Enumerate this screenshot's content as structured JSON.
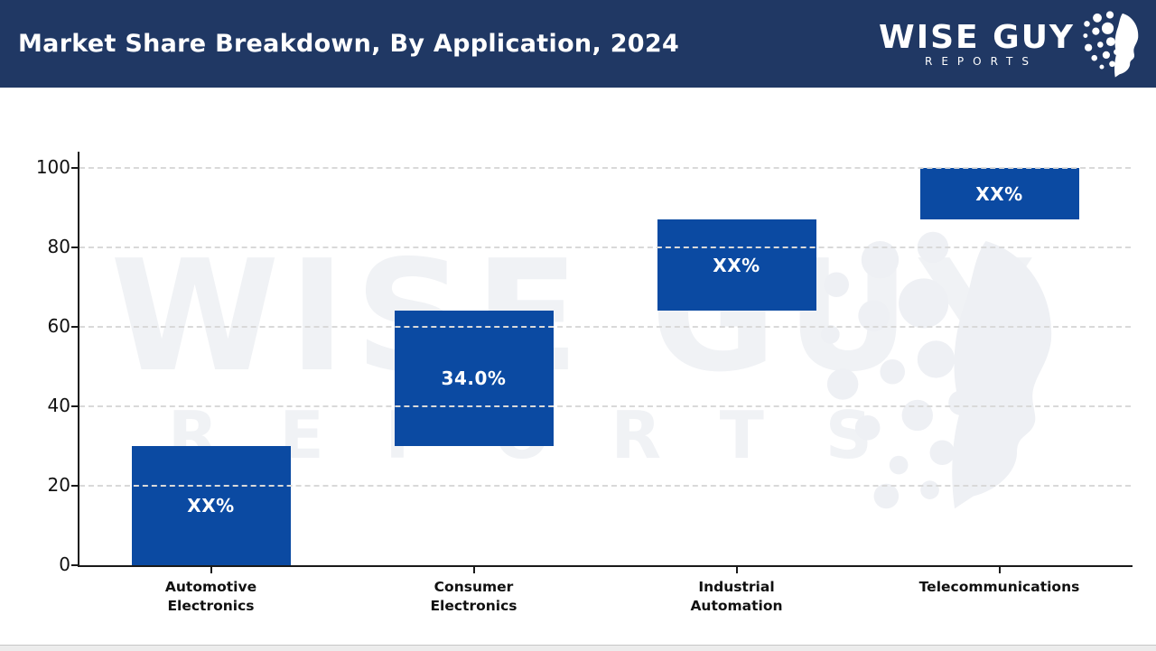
{
  "page": {
    "background": "#ffffff",
    "footer_strip_color": "#ececec"
  },
  "header": {
    "title": "Market Share Breakdown, By Application, 2024",
    "background_color": "#203864",
    "text_color": "#ffffff",
    "logo": {
      "wordmark": "WISE GUY",
      "subtext": "REPORTS",
      "head_icon": "dotted-head-icon"
    }
  },
  "watermark": {
    "line1": "WISE GUY",
    "line2": "REPORTS",
    "head_icon": "dotted-head-icon",
    "color": "#f0f2f5"
  },
  "chart_data": {
    "type": "bar",
    "subtype": "floating-waterfall",
    "title": "Market Share Breakdown, By Application, 2024",
    "categories": [
      "Automotive\nElectronics",
      "Consumer\nElectronics",
      "Industrial\nAutomation",
      "Telecommunications"
    ],
    "segments": [
      [
        0,
        30
      ],
      [
        30,
        64
      ],
      [
        64,
        87
      ],
      [
        87,
        100
      ]
    ],
    "values_pct": [
      30,
      34.0,
      23,
      13
    ],
    "bar_labels": [
      "XX%",
      "34.0%",
      "XX%",
      "XX%"
    ],
    "bar_color": "#0b4aa2",
    "bar_label_color": "#ffffff",
    "xlabel": "",
    "ylabel": "",
    "ylim": [
      0,
      100
    ],
    "yticks": [
      0,
      20,
      40,
      60,
      80,
      100
    ],
    "grid": {
      "horizontal": true,
      "style": "dashed",
      "color": "#d9d9d9",
      "above_bars": true
    },
    "legend": null,
    "axis_color": "#1a1a1a"
  }
}
